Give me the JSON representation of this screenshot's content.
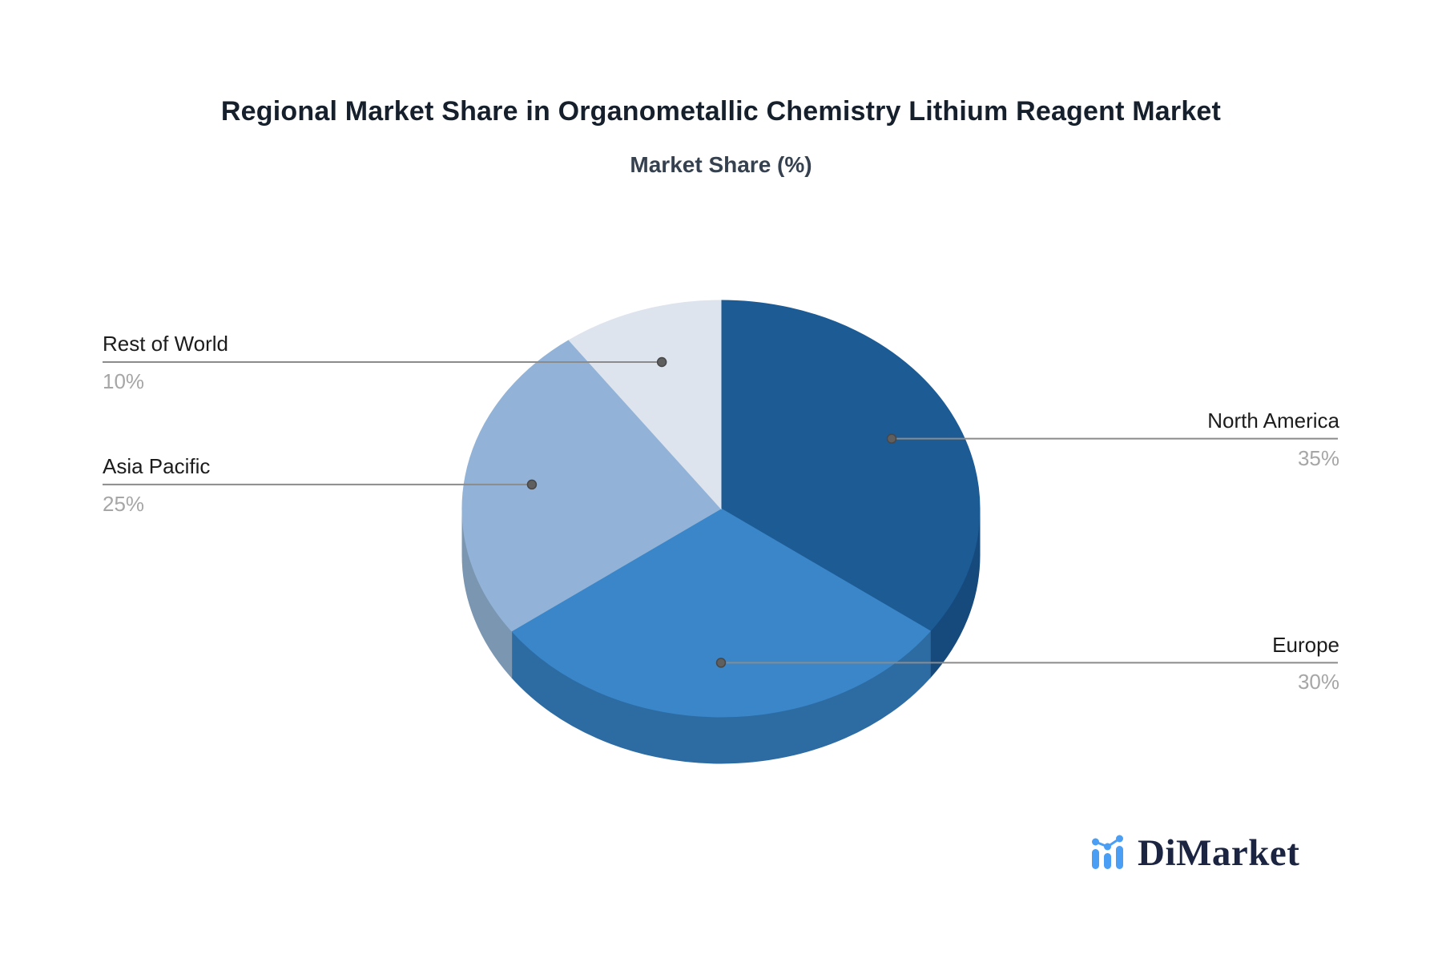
{
  "chart_data": {
    "type": "pie",
    "style": "3d",
    "title": "Regional Market Share in Organometallic Chemistry Lithium Reagent Market",
    "subtitle": "Market Share (%)",
    "unit": "%",
    "start_angle_deg": 0,
    "clockwise": true,
    "legend_position": "none",
    "slices": [
      {
        "label": "North America",
        "value": 35,
        "pct_label": "35%",
        "color": "#1d5b95",
        "side_color": "#164a7c",
        "label_side": "right"
      },
      {
        "label": "Europe",
        "value": 30,
        "pct_label": "30%",
        "color": "#3a86c8",
        "side_color": "#2d6ba3",
        "label_side": "right"
      },
      {
        "label": "Asia Pacific",
        "value": 25,
        "pct_label": "25%",
        "color": "#92b3d7",
        "side_color": "#7b96b0",
        "label_side": "left"
      },
      {
        "label": "Rest of World",
        "value": 10,
        "pct_label": "10%",
        "color": "#dde4ee",
        "side_color": "#c3cdda",
        "label_side": "left"
      }
    ],
    "leader_line_color": "#8b8b8b",
    "leader_dot_color": "#5f5f5f",
    "label_text_color": "#1c1c1c",
    "pct_text_color": "#a6a6a6"
  },
  "logo": {
    "text": "DiMarket",
    "icon": "bar-chart-icon",
    "icon_color": "#4a9ff5",
    "text_color": "#1b2440"
  }
}
